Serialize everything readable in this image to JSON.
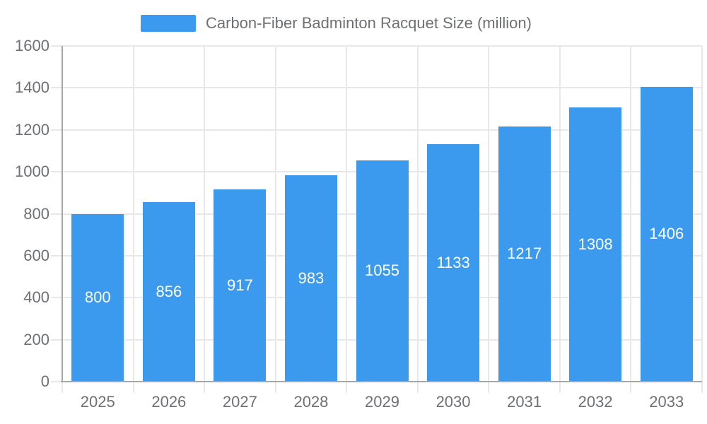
{
  "legend": {
    "label": "Carbon-Fiber Badminton Racquet Size (million)"
  },
  "colors": {
    "bar": "#3B99EE",
    "axis_line": "#A5A5AC",
    "grid_line": "#E8E8EB",
    "axis_text": "#6F7076",
    "bar_label_text": "#FFFFFF",
    "background": "#FFFFFF"
  },
  "chart_data": {
    "type": "bar",
    "title": "Carbon-Fiber Badminton Racquet Size (million)",
    "series_name": "Carbon-Fiber Badminton Racquet Size (million)",
    "categories": [
      "2025",
      "2026",
      "2027",
      "2028",
      "2029",
      "2030",
      "2031",
      "2032",
      "2033"
    ],
    "values": [
      800,
      856,
      917,
      983,
      1055,
      1133,
      1217,
      1308,
      1406
    ],
    "xlabel": "",
    "ylabel": "",
    "ylim": [
      0,
      1600
    ],
    "ytick_step": 200,
    "yticks": [
      0,
      200,
      400,
      600,
      800,
      1000,
      1200,
      1400,
      1600
    ],
    "grid": true,
    "legend_position": "top",
    "data_labels": "inside-center"
  }
}
